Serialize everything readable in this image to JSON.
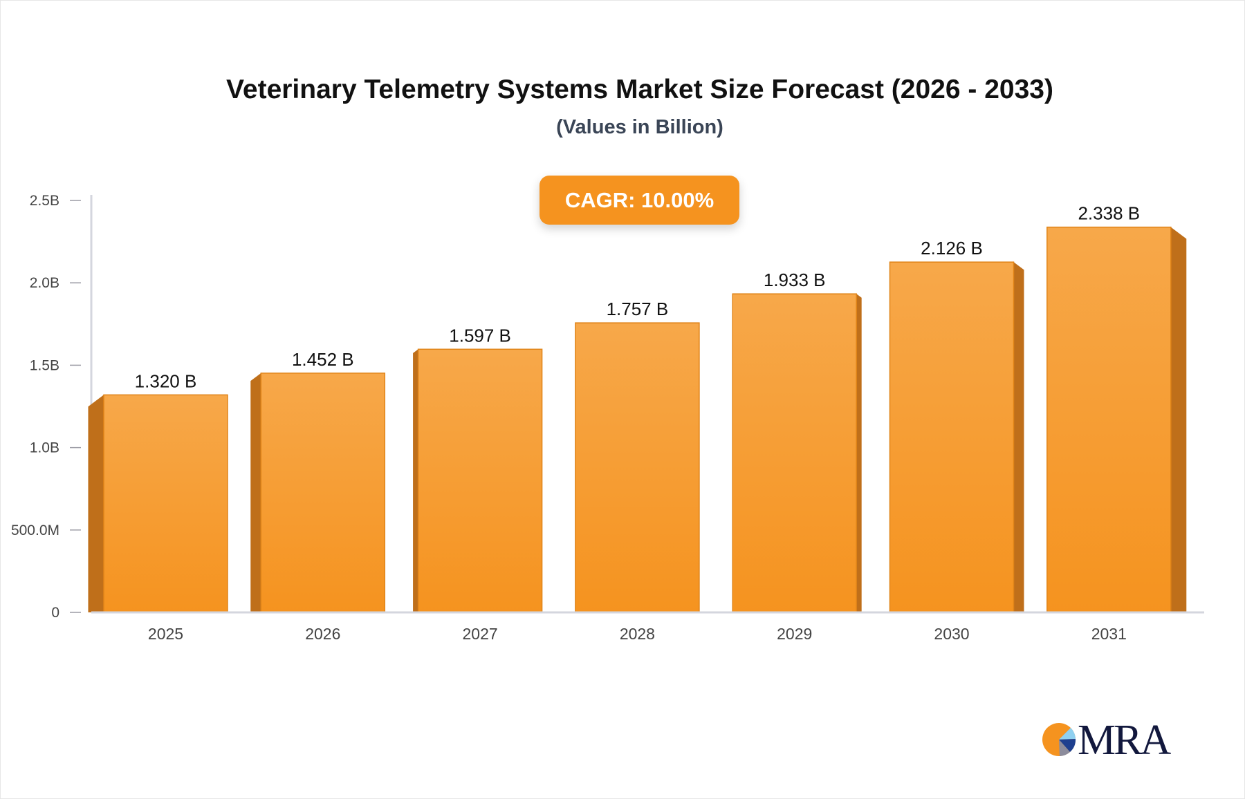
{
  "chart_data": {
    "type": "bar",
    "title": "Veterinary Telemetry Systems Market Size Forecast (2026 - 2033)",
    "subtitle": "(Values in Billion)",
    "annotation": "CAGR: 10.00%",
    "categories": [
      "2025",
      "2026",
      "2027",
      "2028",
      "2029",
      "2030",
      "2031"
    ],
    "values": [
      1.32,
      1.452,
      1.597,
      1.757,
      1.933,
      2.126,
      2.338
    ],
    "data_labels": [
      "1.320 B",
      "1.452 B",
      "1.597 B",
      "1.757 B",
      "1.933 B",
      "2.126 B",
      "2.338 B"
    ],
    "ylim": [
      0,
      2.5
    ],
    "yticks": [
      0,
      0.5,
      1.0,
      1.5,
      2.0,
      2.5
    ],
    "ytick_labels": [
      "0",
      "500.0M",
      "1.0B",
      "1.5B",
      "2.0B",
      "2.5B"
    ],
    "xlabel": "",
    "ylabel": "",
    "grid": false,
    "colors": {
      "bar_top": "#f7a84a",
      "bar_bottom": "#f5931f",
      "bar_side": "#bf6f1a",
      "bar_edge": "#e08418",
      "axis": "#d4d6de",
      "cagr_bg": "#f5931f"
    }
  },
  "logo": {
    "text": "MRA"
  }
}
